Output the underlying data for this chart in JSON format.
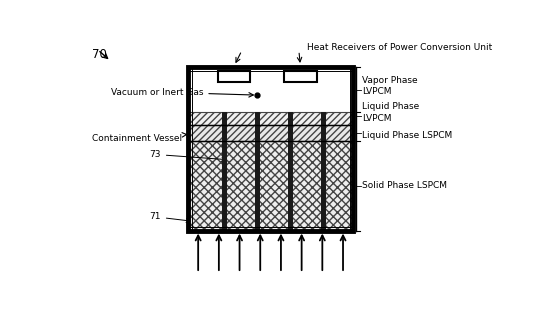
{
  "bg_color": "#ffffff",
  "labels": {
    "fig_num": "70",
    "heat_receivers": "Heat Receivers of Power Conversion Unit",
    "vacuum": "Vacuum or Inert Gas",
    "containment": "Containment Vessel",
    "num73": "73",
    "num71": "71"
  },
  "fontsize": 6.5
}
